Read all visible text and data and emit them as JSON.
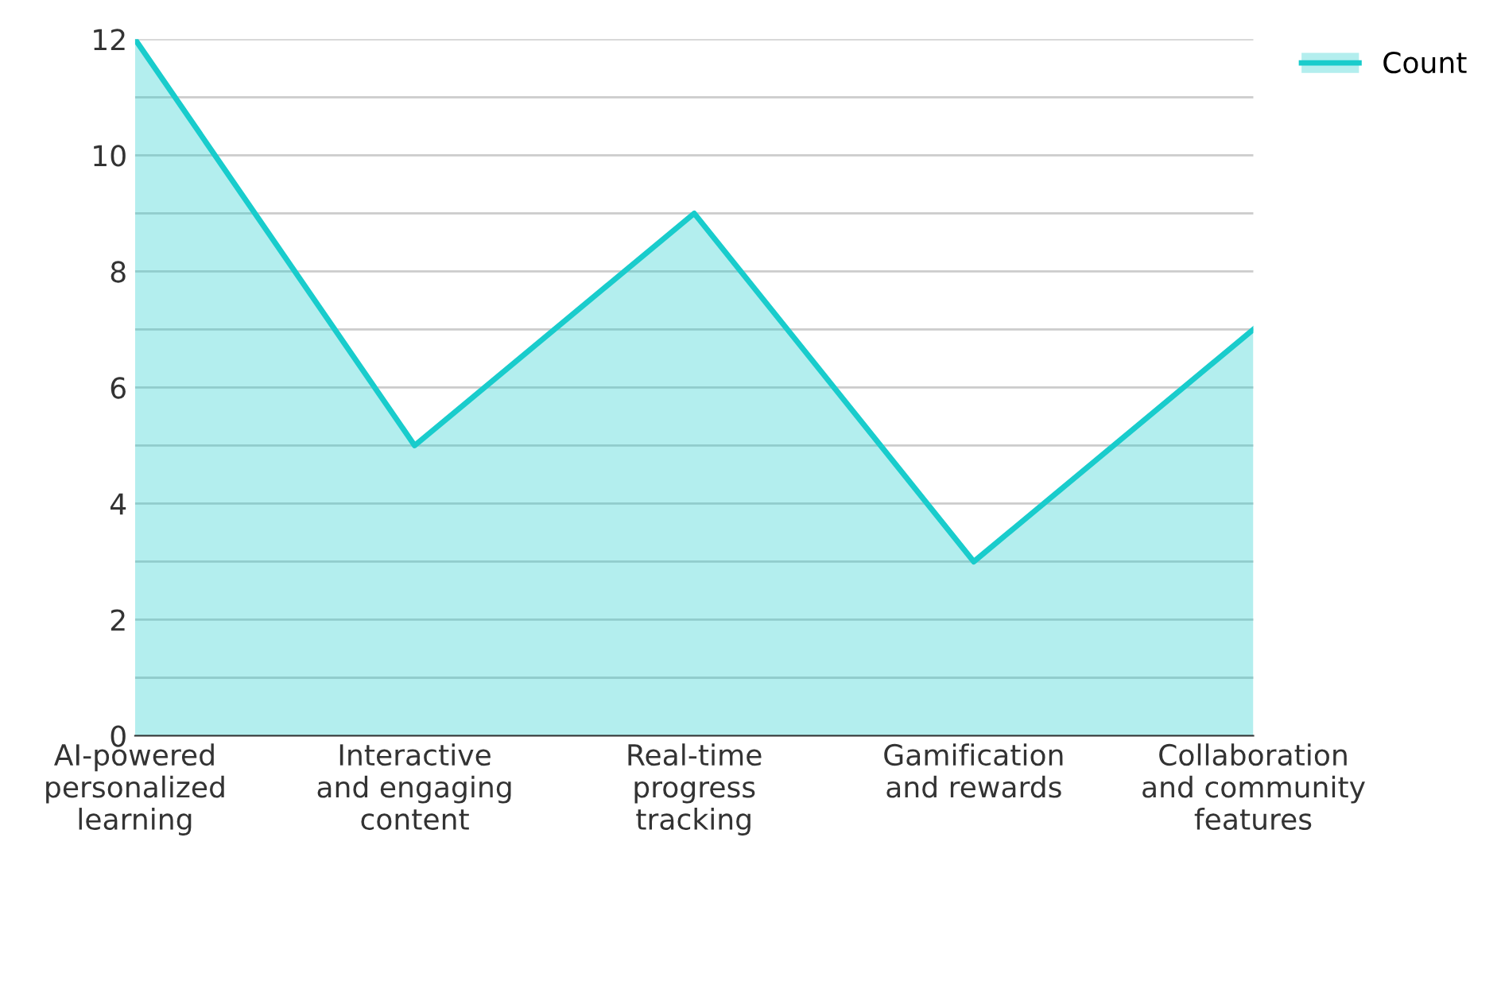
{
  "chart_data": {
    "type": "area",
    "categories": [
      "AI-powered personalized learning",
      "Interactive and engaging content",
      "Real-time progress tracking",
      "Gamification and rewards",
      "Collaboration and community features"
    ],
    "series": [
      {
        "name": "Count",
        "color": "#19cccc",
        "values": [
          12,
          5,
          9,
          3,
          7
        ]
      }
    ],
    "ylim": [
      0,
      12
    ],
    "yticks": [
      0,
      {
        "value": 1,
        "label": null
      },
      2,
      {
        "value": 3,
        "label": null
      },
      4,
      {
        "value": 5,
        "label": null
      },
      6,
      {
        "value": 7,
        "label": null
      },
      8,
      {
        "value": 9,
        "label": null
      },
      10,
      {
        "value": 11,
        "label": null
      },
      12
    ],
    "grid": "y",
    "legend": "top right"
  }
}
